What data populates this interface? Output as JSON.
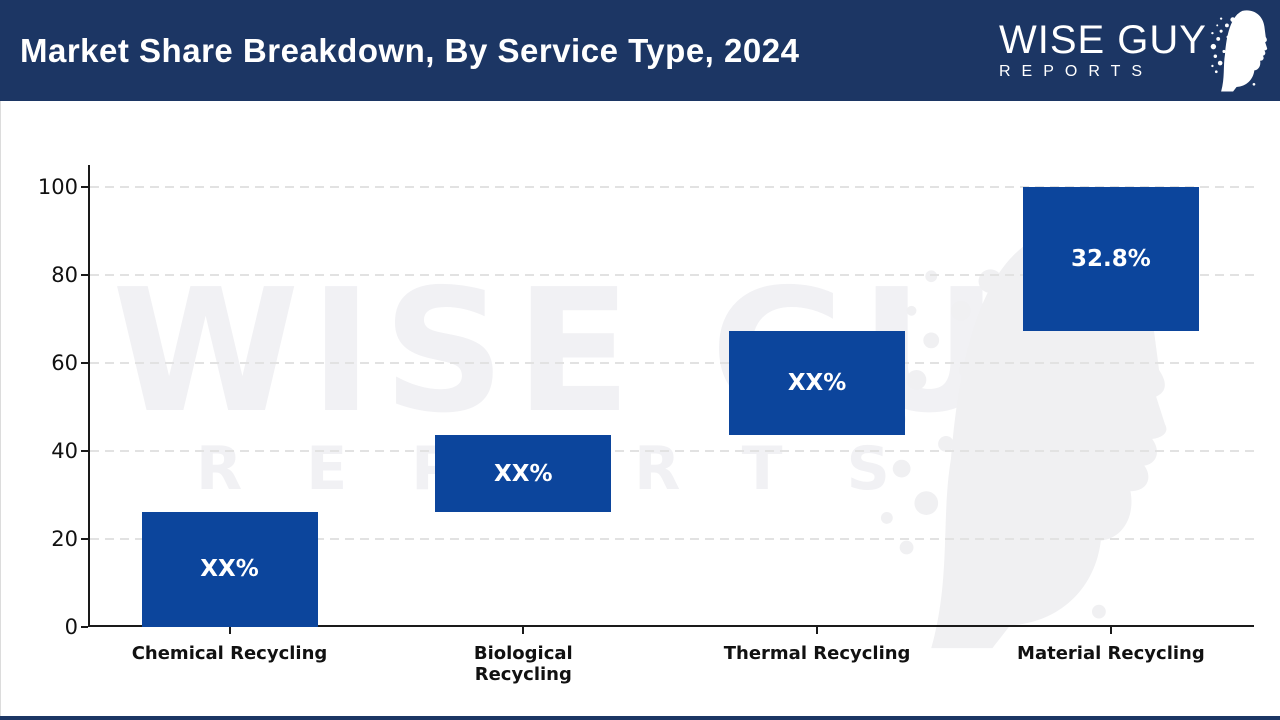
{
  "header": {
    "title": "Market Share Breakdown, By Service Type, 2024",
    "logo": {
      "word": "WISE GUY",
      "sub": "REPORTS"
    }
  },
  "watermark": {
    "word": "WISE GUY",
    "sub": "REPORTS"
  },
  "chart_data": {
    "type": "bar",
    "subtype": "waterfall",
    "title": "Market Share Breakdown, By Service Type, 2024",
    "categories": [
      "Chemical Recycling",
      "Biological Recycling",
      "Thermal Recycling",
      "Material Recycling"
    ],
    "category_label_lines": [
      [
        "Chemical Recycling"
      ],
      [
        "Biological",
        "Recycling"
      ],
      [
        "Thermal Recycling"
      ],
      [
        "Material Recycling"
      ]
    ],
    "segments": [
      {
        "category": "Chemical Recycling",
        "start": 0,
        "end": 26.1,
        "size": 26.1,
        "label": "XX%"
      },
      {
        "category": "Biological Recycling",
        "start": 26.1,
        "end": 43.6,
        "size": 17.5,
        "label": "XX%"
      },
      {
        "category": "Thermal Recycling",
        "start": 43.6,
        "end": 67.2,
        "size": 23.6,
        "label": "XX%"
      },
      {
        "category": "Material Recycling",
        "start": 67.2,
        "end": 100,
        "size": 32.8,
        "label": "32.8%"
      }
    ],
    "ylim": [
      0,
      100
    ],
    "yticks": [
      0,
      20,
      40,
      60,
      80,
      100
    ],
    "xlabel": "",
    "ylabel": "",
    "grid": "horizontal-dashed",
    "legend": "none",
    "bar_color": "#0c459c",
    "bar_label_color": "#ffffff"
  },
  "colors": {
    "header_bg": "#1c3664",
    "footer_bg": "#1c3664",
    "bar": "#0c459c",
    "axis": "#1a1a1a",
    "grid": "#e2e2e2",
    "watermark": "#f1f1f4",
    "text": "#111111"
  }
}
